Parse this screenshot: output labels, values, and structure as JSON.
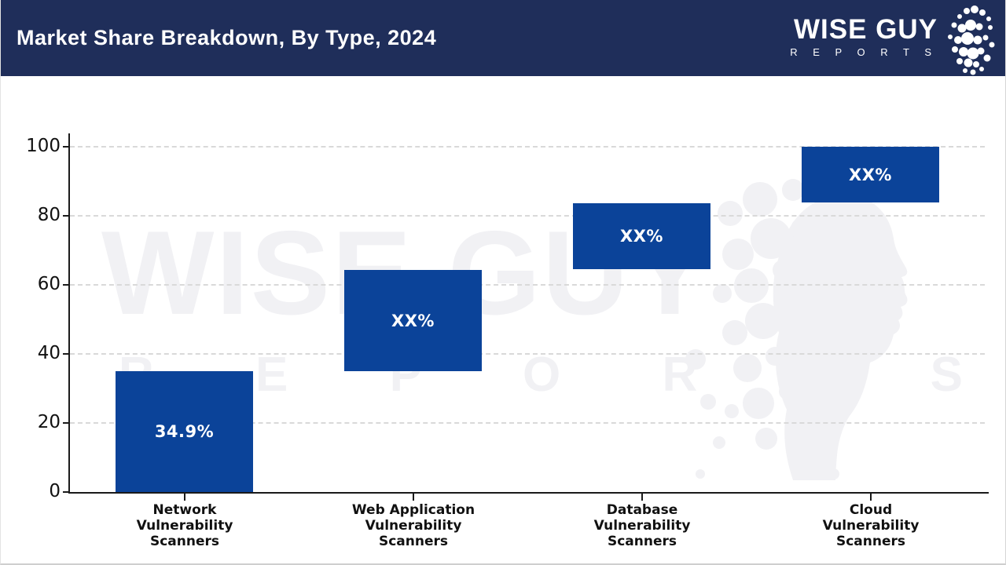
{
  "header": {
    "title": "Market Share Breakdown, By Type, 2024",
    "background_color": "#1f2e5a",
    "logo": {
      "primary": "WISE GUY",
      "secondary": "R E P O R T S"
    }
  },
  "watermark": {
    "line1": "WISE GUY",
    "line2": "R E P O R T S"
  },
  "chart_data": {
    "type": "bar",
    "variant": "floating-stacked-segments",
    "title": "Market Share Breakdown, By Type, 2024",
    "categories": [
      [
        "Network",
        "Vulnerability",
        "Scanners"
      ],
      [
        "Web Application",
        "Vulnerability",
        "Scanners"
      ],
      [
        "Database",
        "Vulnerability",
        "Scanners"
      ],
      [
        "Cloud",
        "Vulnerability",
        "Scanners"
      ]
    ],
    "segments": [
      {
        "start": 0,
        "end": 34.9,
        "label": "34.9%"
      },
      {
        "start": 35.0,
        "end": 64.3,
        "label": "XX%"
      },
      {
        "start": 64.5,
        "end": 83.6,
        "label": "XX%"
      },
      {
        "start": 83.9,
        "end": 100,
        "label": "XX%"
      }
    ],
    "bar_color": "#0b4399",
    "bar_label_color": "#ffffff",
    "ylim": [
      0,
      100
    ],
    "yticks": [
      0,
      20,
      40,
      60,
      80,
      100
    ],
    "grid": "horizontal dashed",
    "xlabel": "",
    "ylabel": "",
    "legend": "none"
  }
}
